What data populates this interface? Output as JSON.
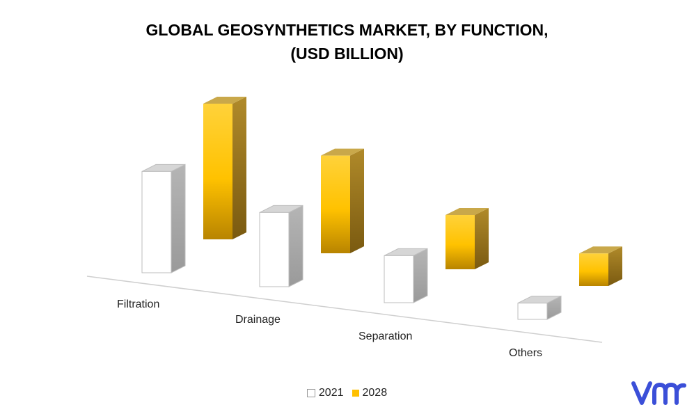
{
  "title": {
    "line1": "GLOBAL GEOSYNTHETICS MARKET, BY FUNCTION,",
    "line2": "(USD BILLION)"
  },
  "chart_data": {
    "type": "bar",
    "style": "3d-column",
    "categories": [
      "Filtration",
      "Drainage",
      "Separation",
      "Others"
    ],
    "series": [
      {
        "name": "2021",
        "values": [
          5.6,
          4.1,
          2.6,
          0.9
        ]
      },
      {
        "name": "2028",
        "values": [
          7.5,
          5.4,
          3.0,
          1.8
        ]
      }
    ],
    "title": "GLOBAL GEOSYNTHETICS MARKET, BY FUNCTION, (USD BILLION)",
    "ylim": [
      0,
      8
    ],
    "grid": false,
    "legend_position": "bottom"
  },
  "legend": {
    "items": [
      "2021",
      "2028"
    ]
  },
  "colors": {
    "s2021_front": "#ffffff",
    "s2021_side": "#a8a8a8",
    "s2021_top": "#d4d4d4",
    "s2028_front_top": "#ffd23a",
    "s2028_front_bottom": "#c48e00",
    "s2028_side": "#8f6d1e",
    "s2028_top": "#c7a84a"
  },
  "logo": {
    "icon": "vmr-logo-icon"
  }
}
